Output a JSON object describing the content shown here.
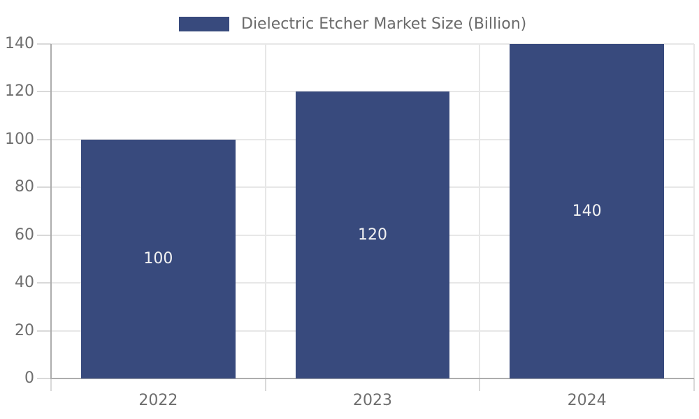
{
  "chart_data": {
    "type": "bar",
    "title": "Dielectric Etcher Market Size (Billion)",
    "categories": [
      "2022",
      "2023",
      "2024"
    ],
    "series": [
      {
        "name": "Dielectric Etcher Market Size (Billion)",
        "values": [
          100,
          120,
          140
        ]
      }
    ],
    "bar_labels": [
      "100",
      "120",
      "140"
    ],
    "bar_label_position": "inside-center",
    "xlabel": "",
    "ylabel": "",
    "ylim": [
      0,
      140
    ],
    "yticks": [
      0,
      20,
      40,
      60,
      80,
      100,
      120,
      140
    ],
    "grid": true,
    "legend_position": "top-center"
  },
  "legend": {
    "label": "Dielectric Etcher Market Size (Billion)"
  },
  "colors": {
    "bar": "#384A7D",
    "grid_line": "#e7e7e7",
    "tick_line": "#d9d9d9",
    "axis_line": "#adadad",
    "axis_text": "#6e6e6e",
    "legend_text": "#6b6b6b",
    "bar_label_text": "#f2f2f2",
    "background": "#ffffff"
  }
}
